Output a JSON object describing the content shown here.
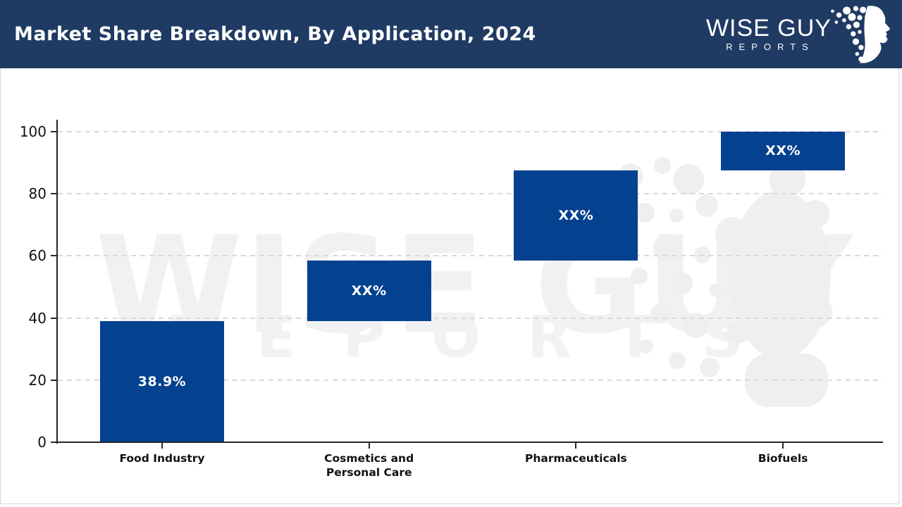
{
  "header": {
    "title": "Market Share Breakdown, By Application, 2024",
    "logo": {
      "line1": "WISE GUY",
      "line2": "REPORTS"
    }
  },
  "watermark": {
    "line1": "WISE GUY",
    "line2": "REPORTS"
  },
  "chart_data": {
    "type": "bar",
    "subtype": "floating-waterfall",
    "title": "Market Share Breakdown, By Application, 2024",
    "categories": [
      "Food Industry",
      "Cosmetics and Personal Care",
      "Pharmaceuticals",
      "Biofuels"
    ],
    "segments": [
      {
        "category": "Food Industry",
        "label_lines": [
          "Food Industry"
        ],
        "start": 0,
        "end": 38.9,
        "label": "38.9%"
      },
      {
        "category": "Cosmetics and Personal Care",
        "label_lines": [
          "Cosmetics and",
          "Personal Care"
        ],
        "start": 39.0,
        "end": 58.6,
        "label": "XX%"
      },
      {
        "category": "Pharmaceuticals",
        "label_lines": [
          "Pharmaceuticals"
        ],
        "start": 58.6,
        "end": 87.6,
        "label": "XX%"
      },
      {
        "category": "Biofuels",
        "label_lines": [
          "Biofuels"
        ],
        "start": 87.6,
        "end": 100.0,
        "label": "XX%"
      }
    ],
    "yticks": [
      0,
      20,
      40,
      60,
      80,
      100
    ],
    "ylim": [
      0,
      104
    ],
    "grid": true,
    "legend": false,
    "bar_color": "#04418f",
    "bar_label_color": "#ffffff"
  },
  "colors": {
    "header_bg": "#1f3a63",
    "bar": "#04418f",
    "grid": "#d9d9d9",
    "axis": "#262626",
    "watermark": "#f1f1f1",
    "page_border": "#d8d8d8"
  }
}
